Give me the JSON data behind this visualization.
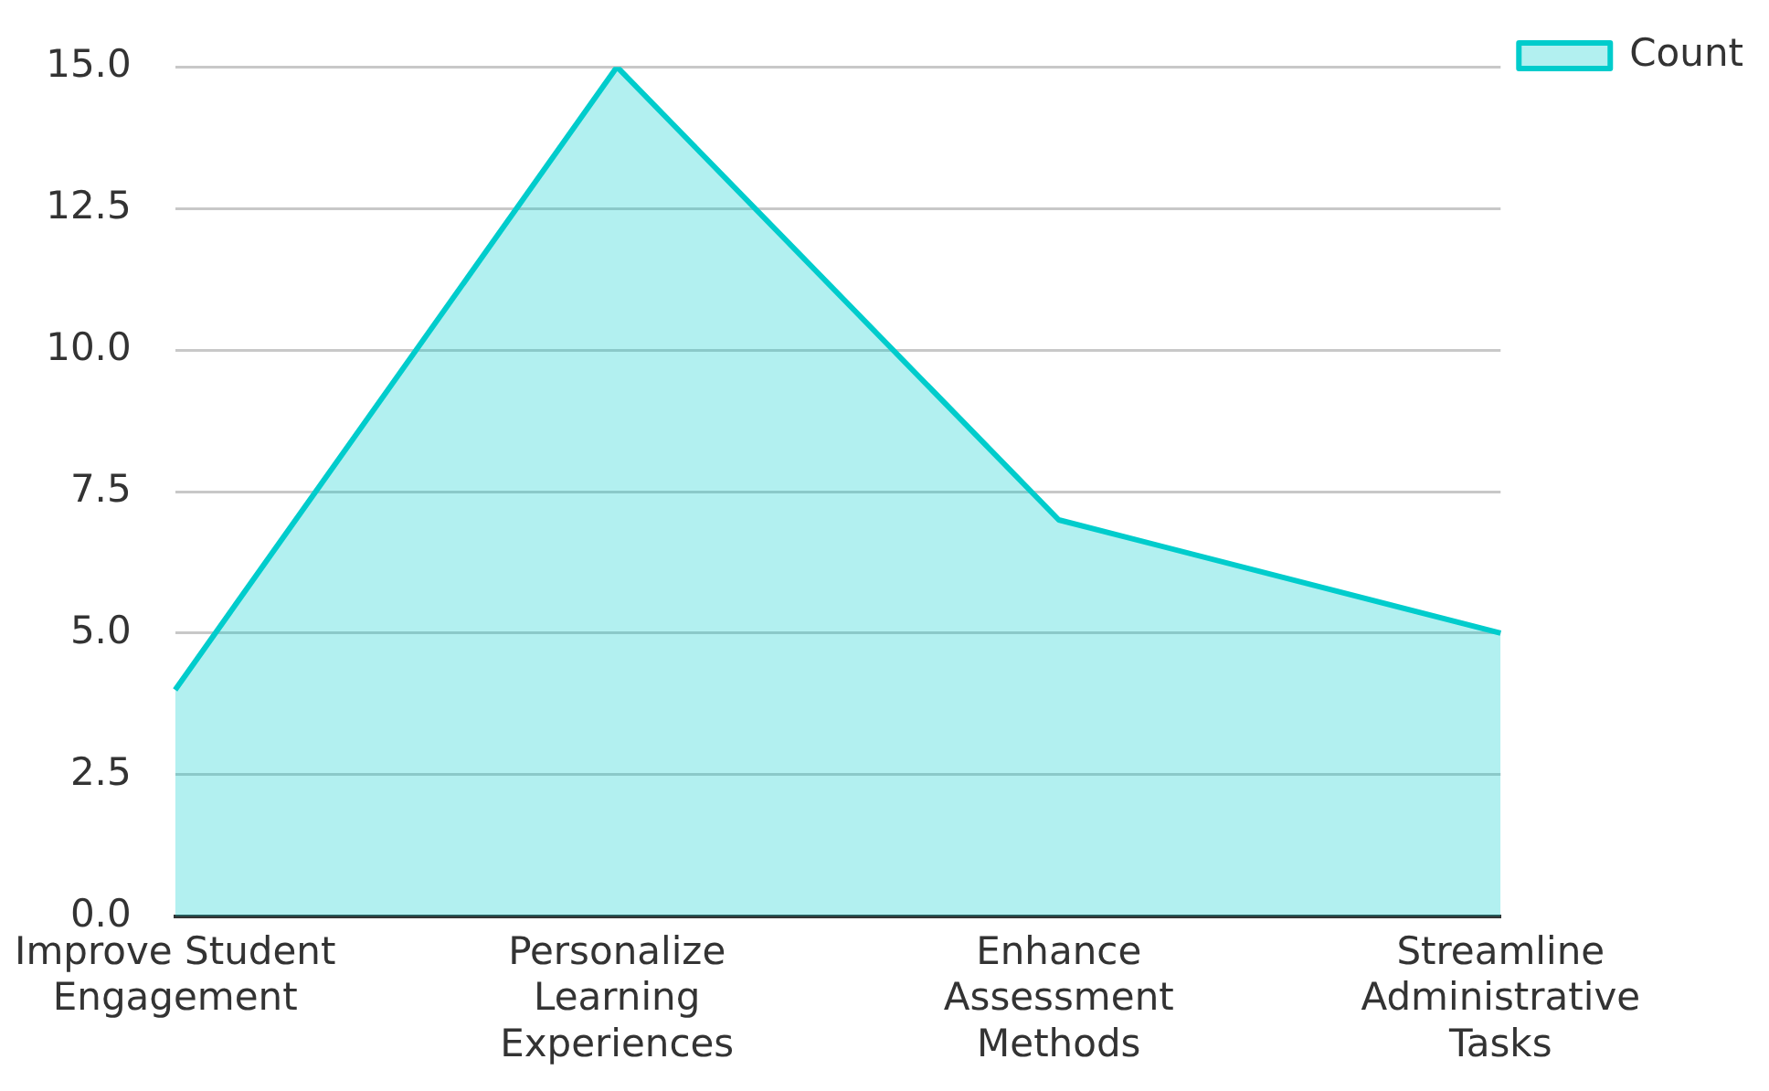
{
  "chart_data": {
    "type": "area",
    "categories": [
      "Improve Student Engagement",
      "Personalize Learning Experiences",
      "Enhance Assessment Methods",
      "Streamline Administrative Tasks"
    ],
    "series": [
      {
        "name": "Count",
        "color": "#00cccc",
        "values": [
          4,
          15,
          7,
          5
        ]
      }
    ],
    "ylim": [
      0,
      15
    ],
    "yticks": [
      {
        "value": 0,
        "label": "0.0"
      },
      {
        "value": 2.5,
        "label": "2.5"
      },
      {
        "value": 5,
        "label": "5.0"
      },
      {
        "value": 7.5,
        "label": "7.5"
      },
      {
        "value": 10,
        "label": "10.0"
      },
      {
        "value": 12.5,
        "label": "12.5"
      },
      {
        "value": 15,
        "label": "15.0"
      }
    ],
    "grid": "y",
    "legend": "top right"
  }
}
